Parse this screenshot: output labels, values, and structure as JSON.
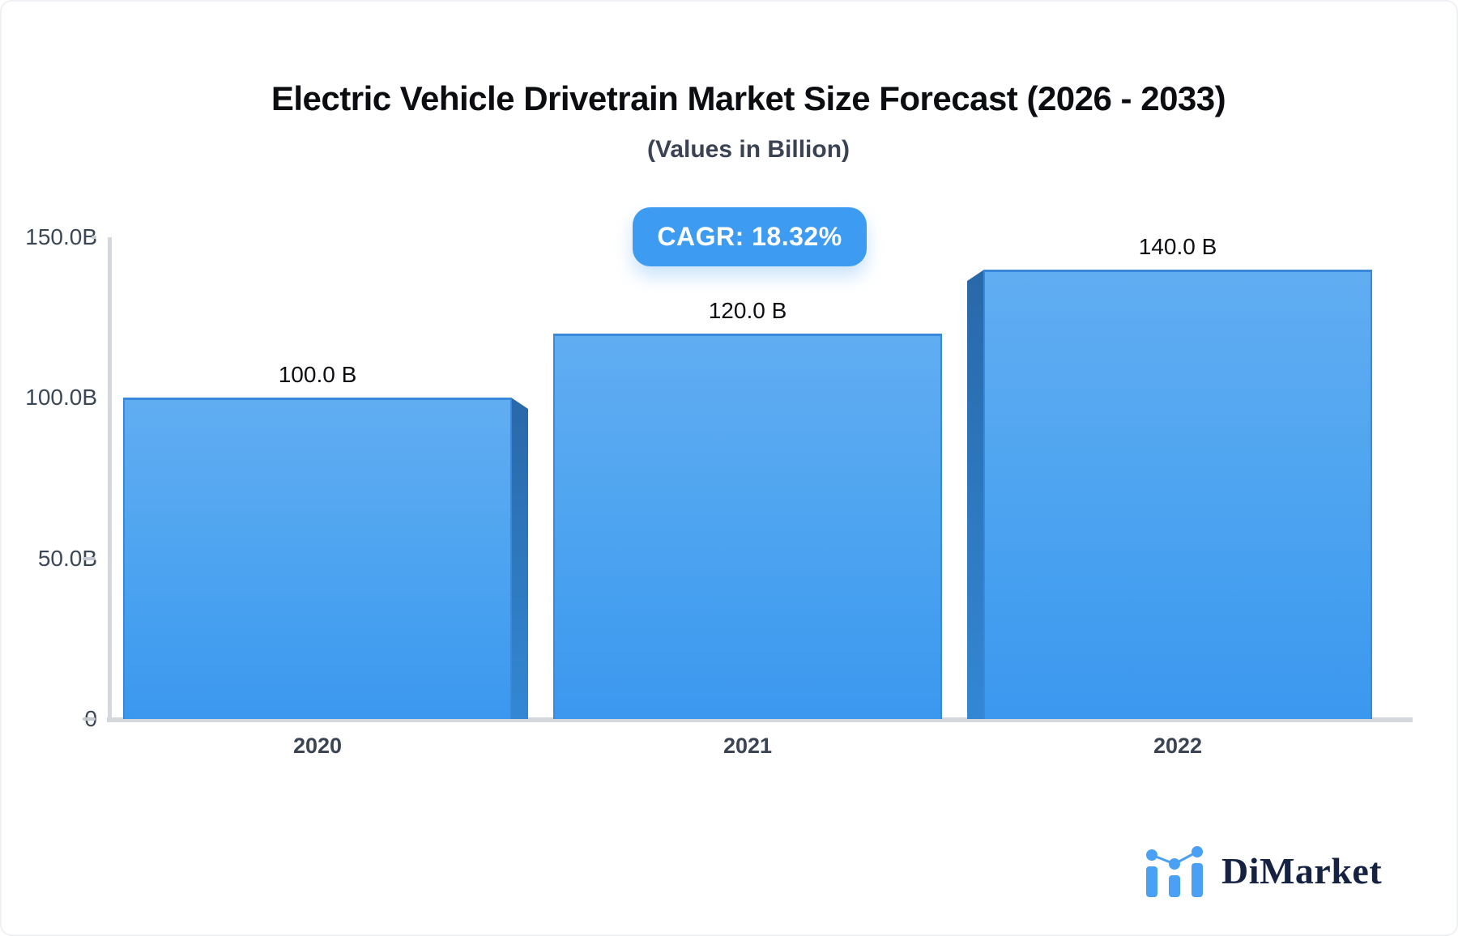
{
  "page": {
    "title": "Electric Vehicle Drivetrain Market Size Forecast (2026 - 2033)",
    "subtitle": "(Values in Billion)",
    "badge_label": "CAGR: 18.32%"
  },
  "chart_data": {
    "type": "bar",
    "title": "Electric Vehicle Drivetrain Market Size Forecast (2026 - 2033)",
    "subtitle": "(Values in Billion)",
    "unit": "Billion",
    "cagr_pct": 18.32,
    "categories": [
      "2020",
      "2021",
      "2022"
    ],
    "values": [
      100.0,
      120.0,
      140.0
    ],
    "bar_labels": [
      "100.0 B",
      "120.0 B",
      "140.0 B"
    ],
    "ylim": [
      0,
      150
    ],
    "yticks": [
      {
        "label": "150.0B",
        "value": 150,
        "marker": "dot"
      },
      {
        "label": "100.0B",
        "value": 100,
        "marker": "none"
      },
      {
        "label": "50.0B",
        "value": 50,
        "marker": "dash"
      },
      {
        "label": "0",
        "value": 0,
        "marker": "dash"
      }
    ],
    "grid": false,
    "legend": false,
    "bar_3d_sides": [
      "right",
      "none",
      "left"
    ],
    "colors": {
      "bar_top": "#61ADF2",
      "bar_bottom": "#3B98EF",
      "bar_border": "#3A88D9",
      "bar_side_top": "#2968A8",
      "bar_side_bottom": "#3387D3",
      "axis": "#D4D7DC",
      "tick_text": "#3C4756",
      "label_text": "#0D0E12",
      "badge_bg": "#3E9BF2",
      "logo_blue": "#4AA0F5",
      "logo_navy": "#152241"
    }
  },
  "logo": {
    "name": "DiMarket",
    "icon": "bar-chart-logo-icon"
  }
}
